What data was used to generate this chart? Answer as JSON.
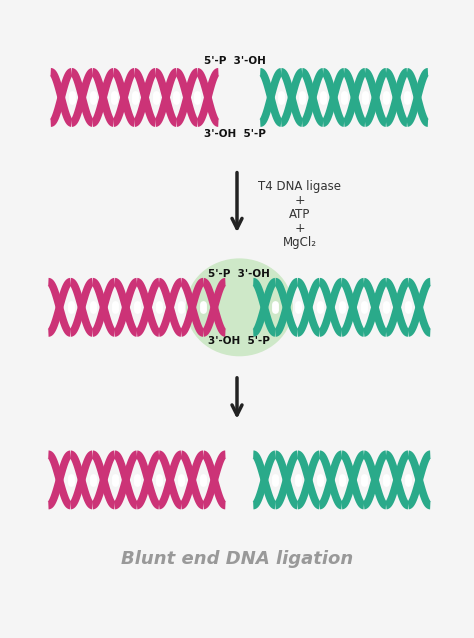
{
  "bg_color": "#f5f5f5",
  "pink_color": "#cc3377",
  "teal_color": "#2aaa8a",
  "green_blob_color": "#c8e6c0",
  "arrow_color": "#222222",
  "text_color": "#333333",
  "label_color": "#111111",
  "title": "Blunt end DNA ligation",
  "reagents_text": [
    "T4 DNA ligase",
    "+",
    "ATP",
    "+",
    "MgCl₂"
  ]
}
